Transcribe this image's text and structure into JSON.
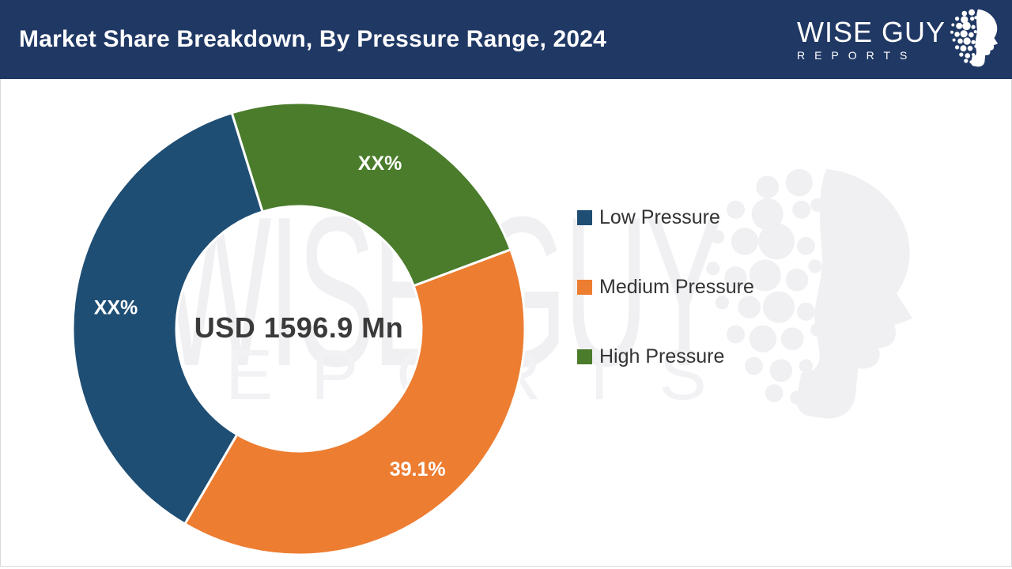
{
  "header": {
    "title": "Market Share Breakdown, By Pressure Range, 2024",
    "background_color": "#203864",
    "logo": {
      "line1": "WISE GUY",
      "line2": "REPORTS"
    }
  },
  "watermark": {
    "line1": "WISE GUY",
    "line2": "REPORTS"
  },
  "legend": {
    "items": [
      {
        "label": "Low Pressure",
        "color": "#1f4e74"
      },
      {
        "label": "Medium Pressure",
        "color": "#ed7d31"
      },
      {
        "label": "High Pressure",
        "color": "#4a7c2b"
      }
    ]
  },
  "chart_data": {
    "type": "pie",
    "subtype": "donut",
    "title": "Market Share Breakdown, By Pressure Range, 2024",
    "center_label": "USD 1596.9 Mn",
    "start_angle_deg": 20.5,
    "direction": "counterclockwise",
    "legend_position": "right",
    "slices": [
      {
        "name": "High Pressure",
        "display_label": "XX%",
        "value_pct_est": 24.1,
        "color": "#4a7c2b"
      },
      {
        "name": "Low Pressure",
        "display_label": "XX%",
        "value_pct_est": 36.8,
        "color": "#1f4e74"
      },
      {
        "name": "Medium Pressure",
        "display_label": "39.1%",
        "value_pct_est": 39.1,
        "color": "#ed7d31"
      }
    ]
  }
}
